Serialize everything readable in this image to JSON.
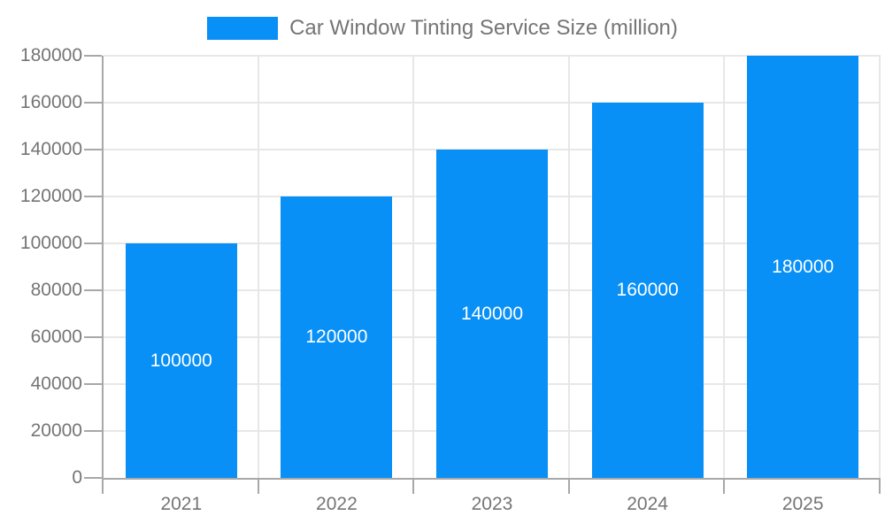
{
  "legend": {
    "label": "Car Window Tinting Service Size (million)"
  },
  "colors": {
    "bar": "#0890f7",
    "bar_label_text": "#ffffff",
    "axis_line": "#a8a8a8",
    "grid_line": "#e7e7e7",
    "tick_text": "#757575",
    "legend_text": "#757575",
    "background": "#ffffff"
  },
  "chart_data": {
    "type": "bar",
    "title": "Car Window Tinting Service Size (million)",
    "categories": [
      "2021",
      "2022",
      "2023",
      "2024",
      "2025"
    ],
    "series": [
      {
        "name": "Car Window Tinting Service Size (million)",
        "values": [
          100000,
          120000,
          140000,
          160000,
          180000
        ]
      }
    ],
    "data_labels": [
      "100000",
      "120000",
      "140000",
      "160000",
      "180000"
    ],
    "xlabel": "",
    "ylabel": "",
    "ylim": [
      0,
      180000
    ],
    "yticks": [
      0,
      20000,
      40000,
      60000,
      80000,
      100000,
      120000,
      140000,
      160000,
      180000
    ],
    "ytick_labels": [
      "0",
      "20000",
      "40000",
      "60000",
      "80000",
      "100000",
      "120000",
      "140000",
      "160000",
      "180000"
    ],
    "grid": "both",
    "legend_position": "top-center"
  }
}
